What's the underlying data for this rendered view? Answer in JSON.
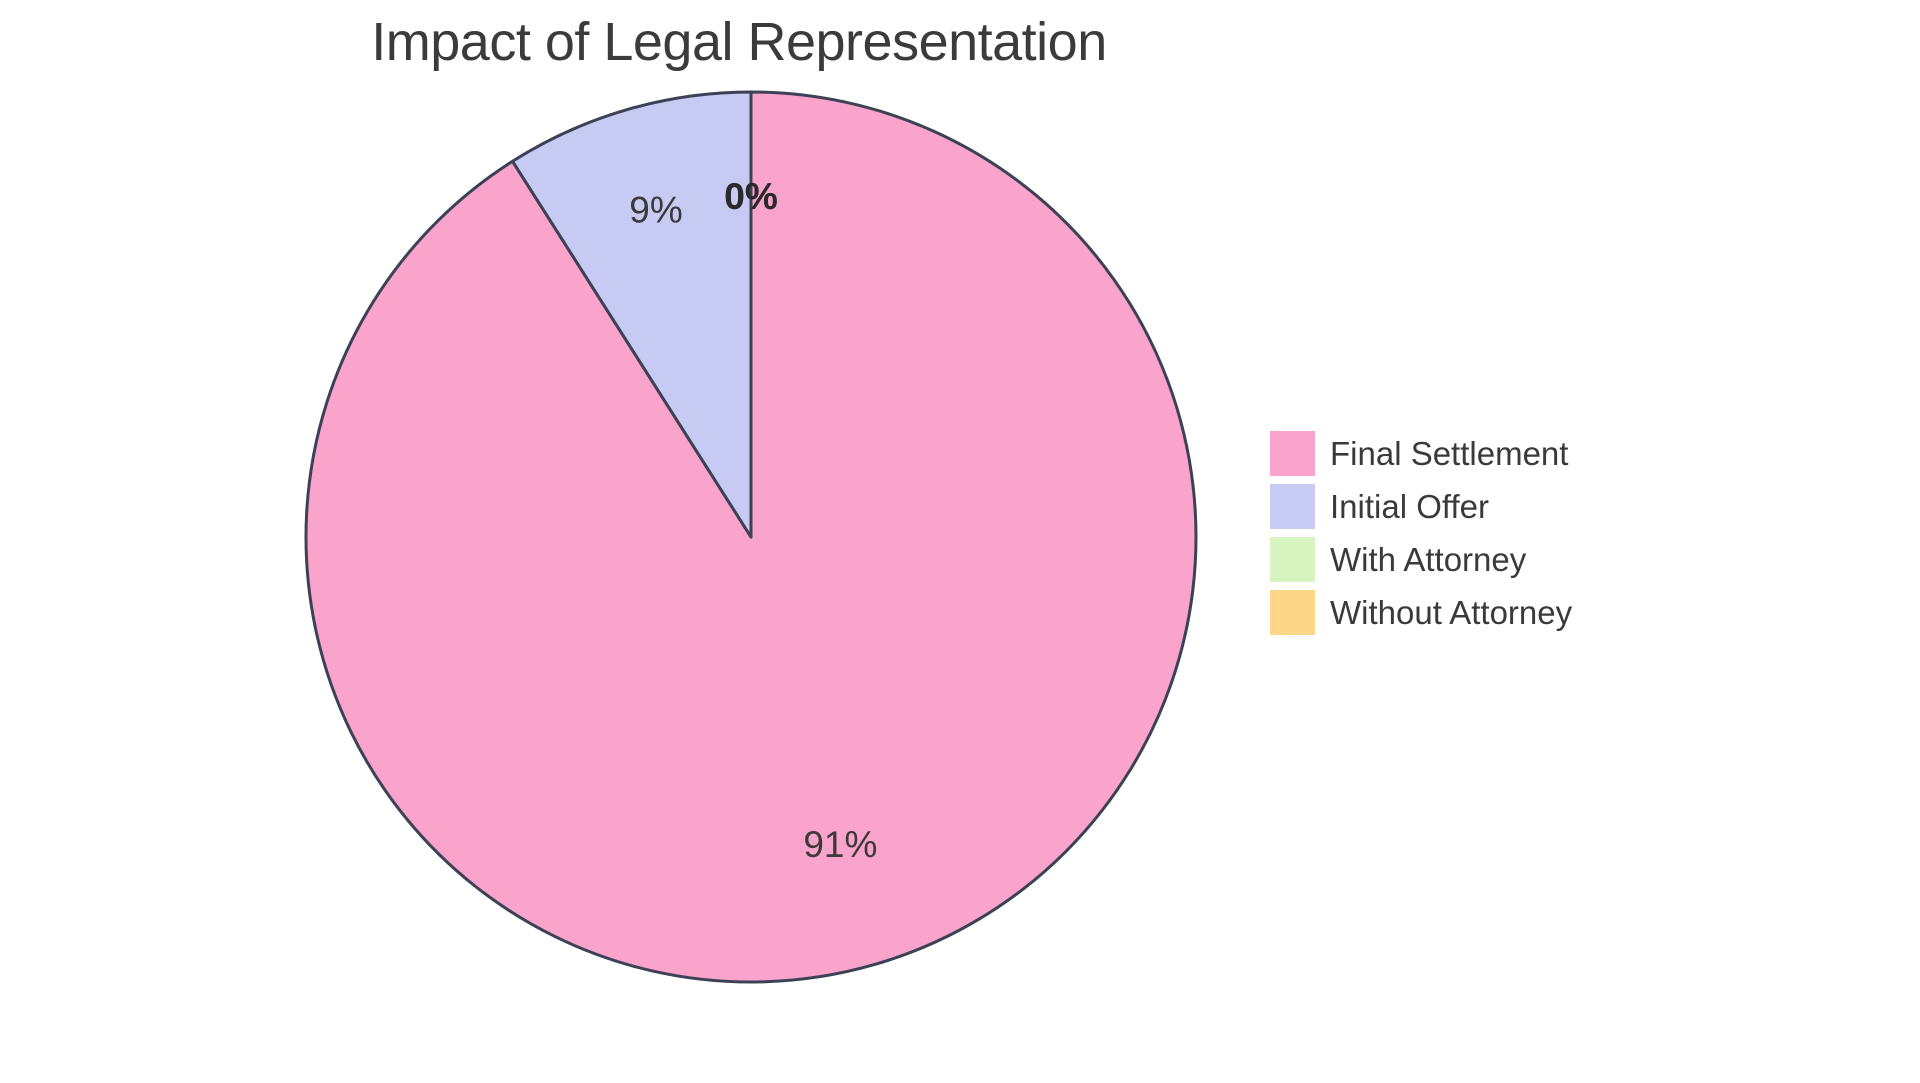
{
  "page": {
    "background_color": "#FFFFFF"
  },
  "chart_data": {
    "type": "pie",
    "title": "Impact of Legal Representation",
    "categories": [
      "Final Settlement",
      "Initial Offer",
      "With Attorney",
      "Without Attorney"
    ],
    "values": [
      91,
      9,
      0,
      0
    ],
    "slice_labels": [
      "91%",
      "9%",
      "0%",
      "0%"
    ],
    "slice_colors": [
      "#FAA3CB",
      "#C7CBF3",
      "#D8F4C0",
      "#FCD78A"
    ],
    "slice_border_color": "#3C4156",
    "slice_border_width": 3,
    "start_angle": "12-oclock",
    "direction": "clockwise",
    "label_color": "#3A3A3A",
    "zero_label_color": "#2A2A2A",
    "title_color": "#3B3B3B",
    "legend_position": "right",
    "legend_text_color": "#3A3A3A",
    "grid": "off"
  }
}
